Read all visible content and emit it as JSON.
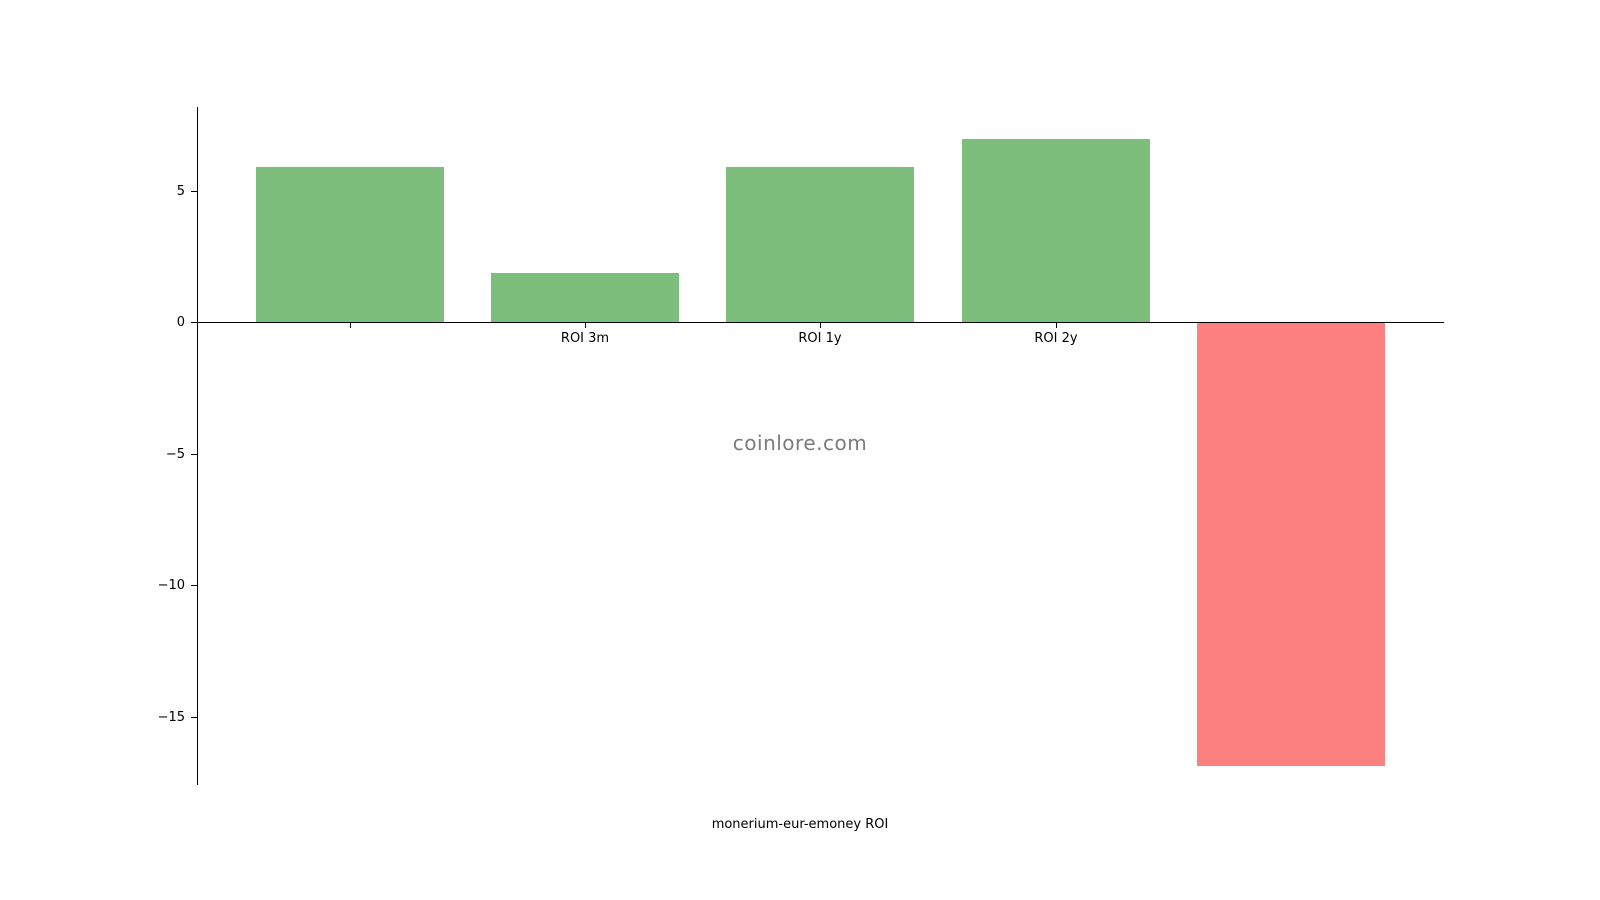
{
  "chart_data": {
    "type": "bar",
    "title": "monerium-eur-emoney ROI",
    "watermark": "coinlore.com",
    "categories": [
      "",
      "ROI 3m",
      "ROI 1y",
      "ROI 2y",
      ""
    ],
    "values": [
      5.9,
      1.9,
      5.9,
      7.0,
      -16.9
    ],
    "series": [
      {
        "name": "ROI",
        "values": [
          5.9,
          1.9,
          5.9,
          7.0,
          -16.9
        ]
      }
    ],
    "positive_color": "#7dbe7d",
    "negative_color": "#fc8080",
    "bar_colors": [
      "#7dbe7d",
      "#7dbe7d",
      "#7dbe7d",
      "#7dbe7d",
      "#fc8080"
    ],
    "yticks": [
      {
        "value": 5,
        "label": "5"
      },
      {
        "value": 0,
        "label": "0"
      },
      {
        "value": -5,
        "label": "−5"
      },
      {
        "value": -10,
        "label": "−10"
      },
      {
        "value": -15,
        "label": "−15"
      }
    ],
    "ylim": [
      -17.6,
      8.2
    ],
    "xlim": [
      -0.65,
      4.65
    ],
    "bar_width": 0.8,
    "grid": false,
    "legend": false,
    "axis_color": "#000000",
    "watermark_color": "#7b7b7b",
    "text_color": "#000000",
    "xlabel": "",
    "ylabel": ""
  }
}
